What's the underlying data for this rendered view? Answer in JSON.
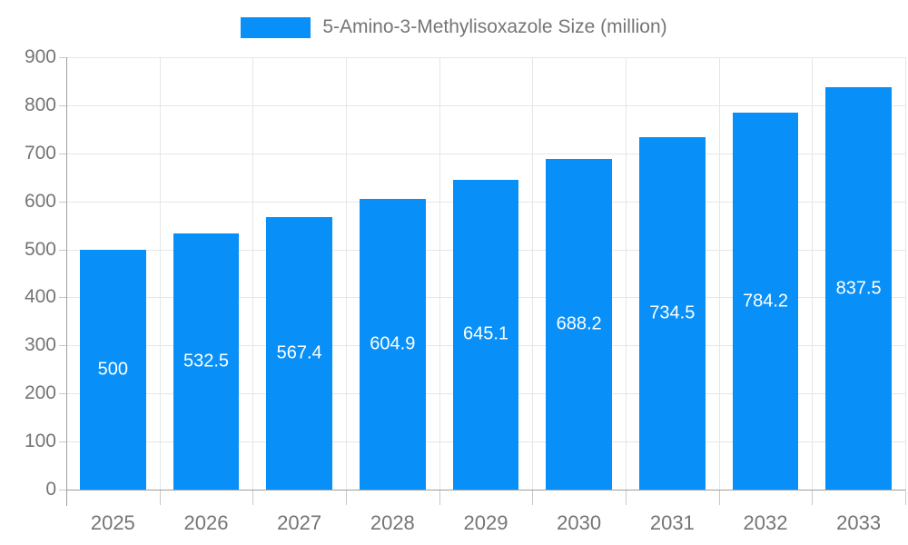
{
  "legend": {
    "label": "5-Amino-3-Methylisoxazole Size (million)"
  },
  "colors": {
    "bar": "#0990F8",
    "axis": "#9E9E9E",
    "grid": "#E6E6E6",
    "tick": "#C9C9C9",
    "text": "#757575",
    "bar_value_text": "#FFFFFF"
  },
  "chart_data": {
    "type": "bar",
    "title": "5-Amino-3-Methylisoxazole Size (million)",
    "categories": [
      "2025",
      "2026",
      "2027",
      "2028",
      "2029",
      "2030",
      "2031",
      "2032",
      "2033"
    ],
    "values": [
      500,
      532.5,
      567.4,
      604.9,
      645.1,
      688.2,
      734.5,
      784.2,
      837.5
    ],
    "xlabel": "",
    "ylabel": "",
    "ylim": [
      0,
      900
    ],
    "ytick_step": 100,
    "yticks": [
      0,
      100,
      200,
      300,
      400,
      500,
      600,
      700,
      800,
      900
    ],
    "grid": "on",
    "legend_position": "top",
    "bar_width_fraction": 0.71,
    "value_label_position": "center-of-bar"
  }
}
